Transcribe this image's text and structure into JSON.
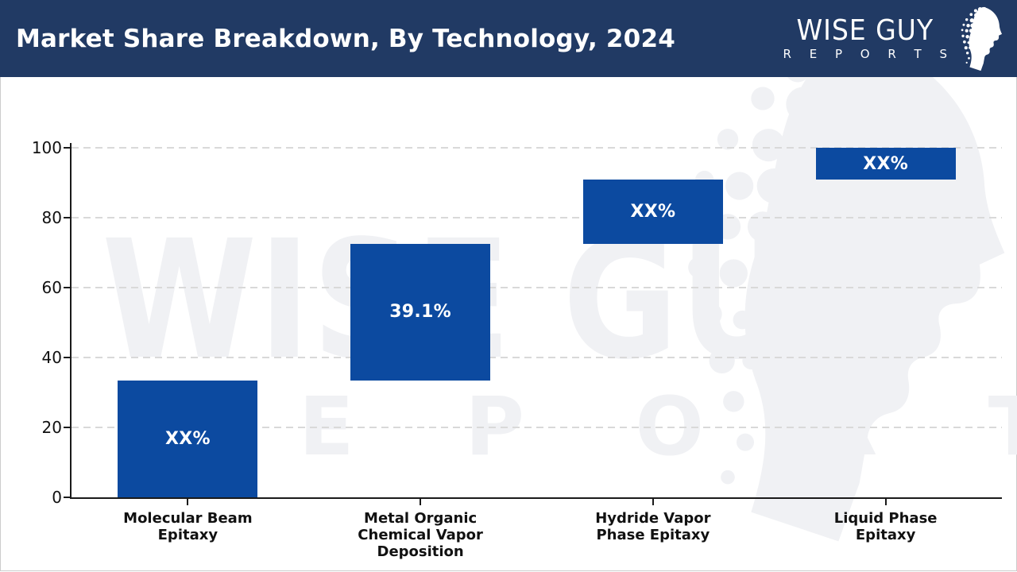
{
  "header": {
    "title": "Market Share Breakdown, By Technology, 2024",
    "logo": {
      "line1": "WISE GUY",
      "line2": "R E P O R T S"
    }
  },
  "watermark": {
    "line1": "WISE GUY",
    "line2": "R E P O R T S"
  },
  "colors": {
    "header_bg": "#213a64",
    "bar": "#0c4aa0",
    "bar_label": "#ffffff",
    "grid": "#d9d9d9",
    "axis": "#1a1a1a",
    "tick_text": "#111111",
    "watermark": "#f0f1f4",
    "border": "#cccccc"
  },
  "chart_data": {
    "type": "bar",
    "subtype": "waterfall-floating-bars",
    "title": "Market Share Breakdown, By Technology, 2024",
    "categories": [
      "Molecular Beam\nEpitaxy",
      "Metal Organic\nChemical Vapor\nDeposition",
      "Hydride Vapor\nPhase Epitaxy",
      "Liquid Phase\nEpitaxy"
    ],
    "segments": [
      {
        "start": 0,
        "end": 33.5,
        "label": "XX%"
      },
      {
        "start": 33.5,
        "end": 72.6,
        "label": "39.1%",
        "value": 39.1
      },
      {
        "start": 72.6,
        "end": 90.9,
        "label": "XX%"
      },
      {
        "start": 90.9,
        "end": 100,
        "label": "XX%"
      }
    ],
    "ylim": [
      0,
      100
    ],
    "yticks": [
      0,
      20,
      40,
      60,
      80,
      100
    ],
    "grid": "horizontal-dashed",
    "legend": "none"
  }
}
